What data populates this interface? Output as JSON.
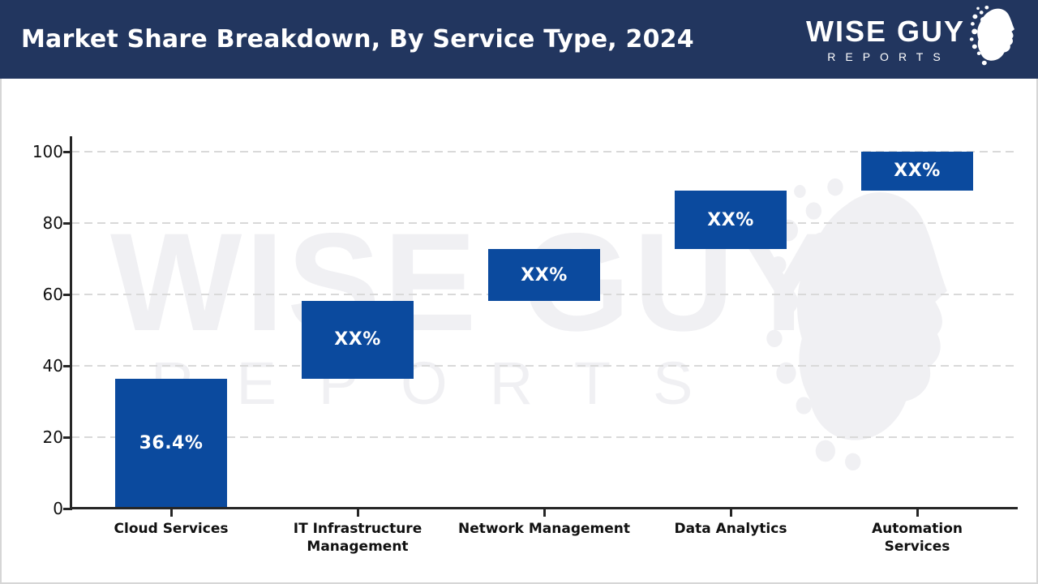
{
  "header": {
    "title": "Market Share Breakdown, By Service Type, 2024",
    "logo": {
      "name_line": "WISE GUY",
      "reports_line": "REPORTS"
    }
  },
  "watermark": {
    "name_line": "WISE GUY",
    "reports_line": "REPORTS"
  },
  "colors": {
    "header_background": "#22365f",
    "bar_fill": "#0b4a9e",
    "bar_label_text": "#ffffff",
    "axis": "#262626",
    "tick_label_text": "#111111",
    "gridline": "#d9d9d9",
    "watermark": "#f0f0f3",
    "page_border": "#d6d6d6"
  },
  "chart_data": {
    "type": "bar",
    "subtype": "waterfall",
    "title": "Market Share Breakdown, By Service Type, 2024",
    "categories": [
      "Cloud Services",
      "IT Infrastructure Management",
      "Network Management",
      "Data Analytics",
      "Automation Services"
    ],
    "xtick_labels": [
      "Cloud Services",
      "IT Infrastructure\nManagement",
      "Network Management",
      "Data Analytics",
      "Automation\nServices"
    ],
    "segments": [
      {
        "category": "Cloud Services",
        "start": 0,
        "end": 36.4,
        "label": "36.4%"
      },
      {
        "category": "IT Infrastructure Management",
        "start": 36.4,
        "end": 58.2,
        "label": "XX%"
      },
      {
        "category": "Network Management",
        "start": 58.2,
        "end": 72.7,
        "label": "XX%"
      },
      {
        "category": "Data Analytics",
        "start": 72.7,
        "end": 89.1,
        "label": "XX%"
      },
      {
        "category": "Automation Services",
        "start": 89.1,
        "end": 100,
        "label": "XX%"
      }
    ],
    "ylim": [
      0,
      100
    ],
    "yticks": [
      0,
      20,
      40,
      60,
      80,
      100
    ],
    "xlabel": "",
    "ylabel": "",
    "grid": "horizontal-dashed",
    "legend": "none"
  }
}
